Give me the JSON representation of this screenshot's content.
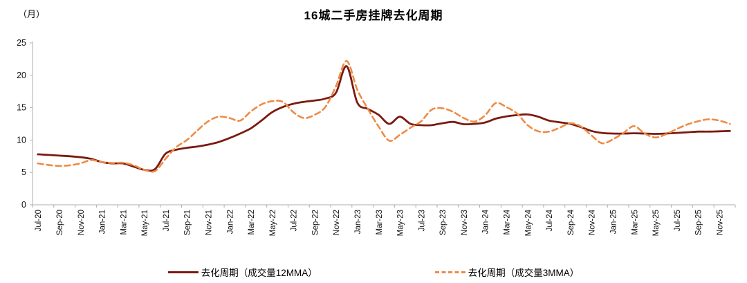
{
  "header": {
    "unit_label": "（月）",
    "title": "16城二手房挂牌去化周期"
  },
  "chart_data": {
    "type": "line",
    "title": "16城二手房挂牌去化周期",
    "ylabel": "（月）",
    "xlabel": "",
    "grid": false,
    "legend_position": "bottom",
    "ylim": [
      0,
      25
    ],
    "yticks": [
      0,
      5,
      10,
      15,
      20,
      25
    ],
    "x_tick_every": 2,
    "axis_color": "#ADADAD",
    "text_color": "#111111",
    "x": [
      "Jul-20",
      "Aug-20",
      "Sep-20",
      "Oct-20",
      "Nov-20",
      "Dec-20",
      "Jan-21",
      "Feb-21",
      "Mar-21",
      "Apr-21",
      "May-21",
      "Jun-21",
      "Jul-21",
      "Aug-21",
      "Sep-21",
      "Oct-21",
      "Nov-21",
      "Dec-21",
      "Jan-22",
      "Feb-22",
      "Mar-22",
      "Apr-22",
      "May-22",
      "Jun-22",
      "Jul-22",
      "Aug-22",
      "Sep-22",
      "Oct-22",
      "Nov-22",
      "Dec-22",
      "Jan-23",
      "Feb-23",
      "Mar-23",
      "Apr-23",
      "May-23",
      "Jun-23",
      "Jul-23",
      "Aug-23",
      "Sep-23",
      "Oct-23",
      "Nov-23",
      "Dec-23",
      "Jan-24",
      "Feb-24",
      "Mar-24",
      "Apr-24",
      "May-24",
      "Jun-24",
      "Jul-24",
      "Aug-24",
      "Sep-24",
      "Oct-24",
      "Nov-24",
      "Dec-24",
      "Jan-25",
      "Feb-25",
      "Mar-25",
      "Apr-25",
      "May-25",
      "Jun-25",
      "Jul-25",
      "Aug-25",
      "Sep-25",
      "Oct-25",
      "Nov-25",
      "Dec-25"
    ],
    "series": [
      {
        "name": "去化周期（成交量12MMA）",
        "style": "solid",
        "color": "#7B1A10",
        "values": [
          7.8,
          7.7,
          7.6,
          7.5,
          7.35,
          7.1,
          6.6,
          6.4,
          6.4,
          5.9,
          5.4,
          5.5,
          7.9,
          8.5,
          8.8,
          9.0,
          9.3,
          9.7,
          10.3,
          11.0,
          11.8,
          13.0,
          14.3,
          15.1,
          15.6,
          15.9,
          16.1,
          16.4,
          17.3,
          21.4,
          15.8,
          14.8,
          13.9,
          12.5,
          13.6,
          12.5,
          12.3,
          12.3,
          12.6,
          12.8,
          12.45,
          12.5,
          12.7,
          13.3,
          13.65,
          13.85,
          13.95,
          13.6,
          13.0,
          12.75,
          12.5,
          12.0,
          11.4,
          11.1,
          11.0,
          11.0,
          11.05,
          11.0,
          10.95,
          11.0,
          11.1,
          11.2,
          11.3,
          11.3,
          11.35,
          11.4
        ]
      },
      {
        "name": "去化周期（成交量3MMA）",
        "style": "dashed",
        "color": "#EE8B44",
        "values": [
          6.4,
          6.15,
          6.0,
          6.1,
          6.4,
          6.9,
          6.6,
          6.45,
          6.5,
          6.1,
          5.4,
          5.2,
          7.1,
          8.9,
          10.0,
          11.5,
          12.9,
          13.6,
          13.4,
          13.0,
          14.4,
          15.5,
          16.0,
          15.9,
          14.3,
          13.4,
          13.9,
          15.1,
          18.3,
          22.2,
          17.8,
          14.8,
          12.1,
          9.9,
          10.8,
          11.9,
          12.9,
          14.7,
          14.9,
          14.35,
          13.4,
          12.85,
          13.8,
          15.7,
          15.1,
          14.1,
          12.3,
          11.35,
          11.3,
          11.9,
          12.6,
          12.1,
          10.7,
          9.5,
          10.1,
          11.1,
          12.15,
          11.0,
          10.4,
          10.9,
          11.7,
          12.4,
          12.9,
          13.2,
          13.0,
          12.5
        ]
      }
    ]
  }
}
